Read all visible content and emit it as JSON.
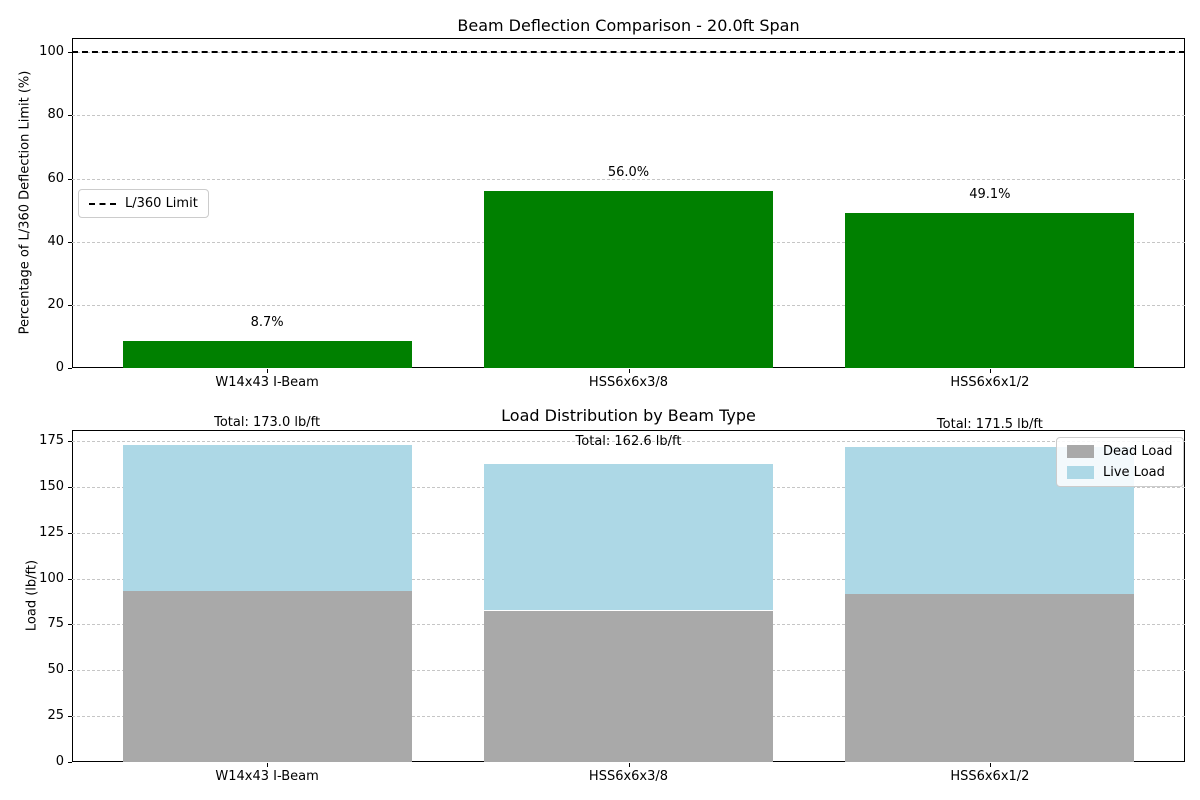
{
  "figure": {
    "background": "#ffffff"
  },
  "chart_data": [
    {
      "type": "bar",
      "title": "Beam Deflection Comparison - 20.0ft Span",
      "categories": [
        "W14x43 I-Beam",
        "HSS6x6x3/8",
        "HSS6x6x1/2"
      ],
      "values": [
        8.7,
        56.0,
        49.1
      ],
      "bar_labels": [
        "8.7%",
        "56.0%",
        "49.1%"
      ],
      "bar_color": "#008000",
      "xlabel": "",
      "ylabel": "Percentage of L/360 Deflection Limit (%)",
      "ylim": [
        0,
        104.5
      ],
      "yticks": [
        0,
        20,
        40,
        60,
        80,
        100
      ],
      "grid": "horizontal-dashed",
      "reference_line": {
        "value": 100,
        "label": "L/360 Limit",
        "color": "#000000",
        "style": "dashed"
      },
      "legend": {
        "position": "center-left",
        "entries": [
          {
            "label": "L/360 Limit",
            "marker": "dashed-line",
            "color": "#000000"
          }
        ]
      }
    },
    {
      "type": "bar-stacked",
      "title": "Load Distribution by Beam Type",
      "categories": [
        "W14x43 I-Beam",
        "HSS6x6x3/8",
        "HSS6x6x1/2"
      ],
      "series": [
        {
          "name": "Dead Load",
          "color": "#A9A9A9",
          "values": [
            93.0,
            82.6,
            91.5
          ]
        },
        {
          "name": "Live Load",
          "color": "#ADD8E6",
          "values": [
            80.0,
            80.0,
            80.0
          ]
        }
      ],
      "totals": [
        173.0,
        162.6,
        171.5
      ],
      "total_labels": [
        "Total: 173.0 lb/ft",
        "Total: 162.6 lb/ft",
        "Total: 171.5 lb/ft"
      ],
      "xlabel": "",
      "ylabel": "Load (lb/ft)",
      "ylim": [
        0,
        181
      ],
      "yticks": [
        0,
        25,
        50,
        75,
        100,
        125,
        150,
        175
      ],
      "grid": "horizontal-dashed",
      "legend": {
        "position": "top-right",
        "entries": [
          {
            "label": "Dead Load",
            "marker": "patch",
            "color": "#A9A9A9"
          },
          {
            "label": "Live Load",
            "marker": "patch",
            "color": "#ADD8E6"
          }
        ]
      }
    }
  ]
}
